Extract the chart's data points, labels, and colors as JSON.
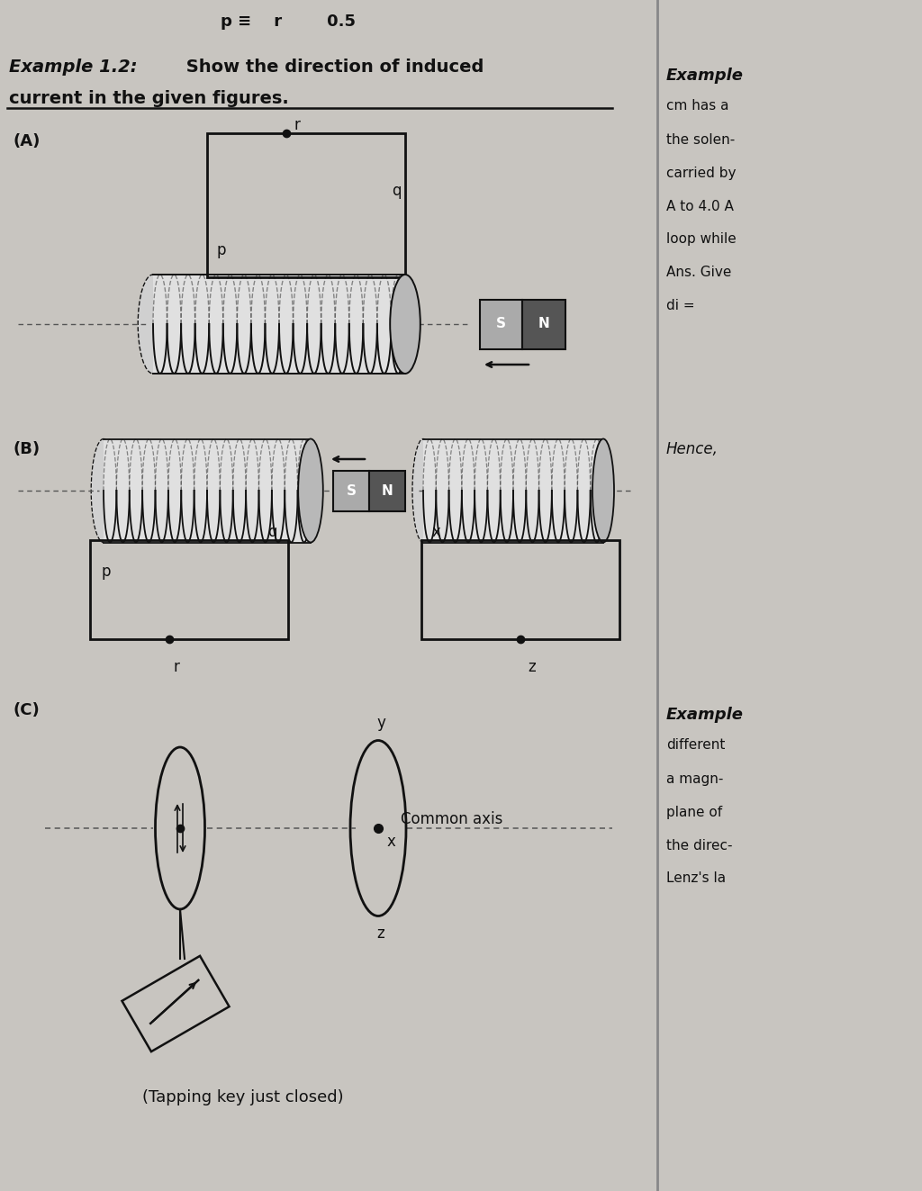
{
  "bg_color": "#c8c5c0",
  "text_color": "#111111",
  "line_color": "#111111",
  "title_bold": "Example 1.2:",
  "title_rest": " Show the direction of induced",
  "title_line2": "current in the given figures.",
  "top_text": "p ≡    r         0.5",
  "label_A": "(A)",
  "label_B": "(B)",
  "label_C": "(C)",
  "bottom_caption": "(Tapping key just closed)",
  "common_axis": "Common axis",
  "right_texts": [
    "Example",
    "cm has a",
    "the solen-",
    "carried by",
    "A to 4.0 A",
    "loop while",
    "Ans. Give",
    "di =",
    "",
    "Hence,",
    "",
    "",
    "",
    "",
    "",
    "Example",
    "different",
    "a magn-",
    "plane of",
    "the direc-",
    "Lenz's la"
  ]
}
